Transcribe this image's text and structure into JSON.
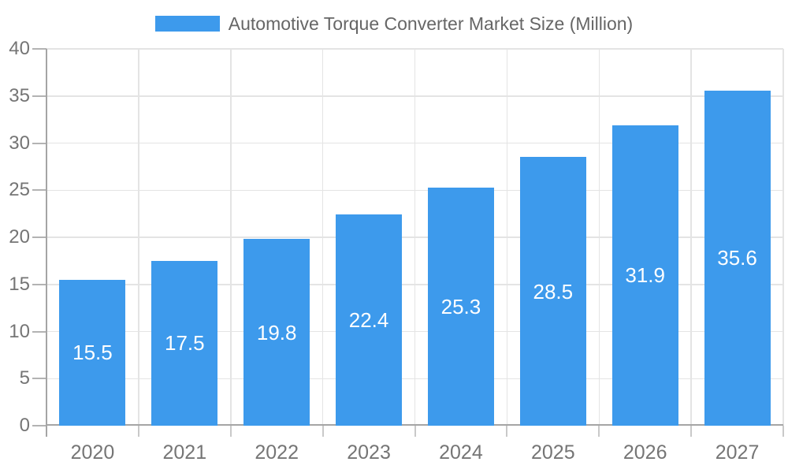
{
  "legend": {
    "label": "Automotive Torque Converter Market Size (Million)"
  },
  "colors": {
    "bar": "#3D9AEC",
    "grid": "#e4e4e4",
    "axis": "#a5a5a5",
    "y_tick": "#b3b3b3",
    "x_tick": "#c9c9c9",
    "axis_text": "#757575",
    "legend_text": "#666666",
    "value_text": "#ffffff",
    "background": "#ffffff"
  },
  "chart_data": {
    "type": "bar",
    "title": "Automotive Torque Converter Market Size (Million)",
    "categories": [
      "2020",
      "2021",
      "2022",
      "2023",
      "2024",
      "2025",
      "2026",
      "2027"
    ],
    "values": [
      15.5,
      17.5,
      19.8,
      22.4,
      25.3,
      28.5,
      31.9,
      35.6
    ],
    "xlabel": "",
    "ylabel": "",
    "ylim": [
      0,
      40
    ],
    "ytick_step": 5,
    "yticks": [
      0,
      5,
      10,
      15,
      20,
      25,
      30,
      35,
      40
    ],
    "grid": true,
    "legend_position": "top",
    "value_label_position": "inside-center"
  }
}
